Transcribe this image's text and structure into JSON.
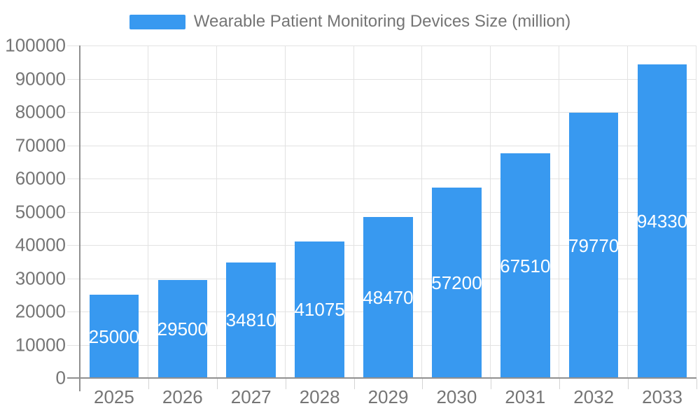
{
  "legend": {
    "label": "Wearable Patient Monitoring Devices Size (million)"
  },
  "chart_data": {
    "type": "bar",
    "title": "Wearable Patient Monitoring Devices Size (million)",
    "categories": [
      "2025",
      "2026",
      "2027",
      "2028",
      "2029",
      "2030",
      "2031",
      "2032",
      "2033"
    ],
    "values": [
      25000,
      29500,
      34810,
      41075,
      48470,
      57200,
      67510,
      79770,
      94330
    ],
    "xlabel": "",
    "ylabel": "",
    "ylim": [
      0,
      100000
    ],
    "y_ticks": [
      0,
      10000,
      20000,
      30000,
      40000,
      50000,
      60000,
      70000,
      80000,
      90000,
      100000
    ],
    "grid": true,
    "legend_position": "top-center",
    "bar_value_labels_inside": true,
    "colors": {
      "bar": "#3899F0",
      "bar_label": "#FFFFFF",
      "axis_line": "#909090",
      "gridline": "#E2E2E2",
      "tick": "#D4D4D4",
      "axis_text": "#757575",
      "legend_text": "#757575",
      "background": "#FFFFFF"
    }
  }
}
